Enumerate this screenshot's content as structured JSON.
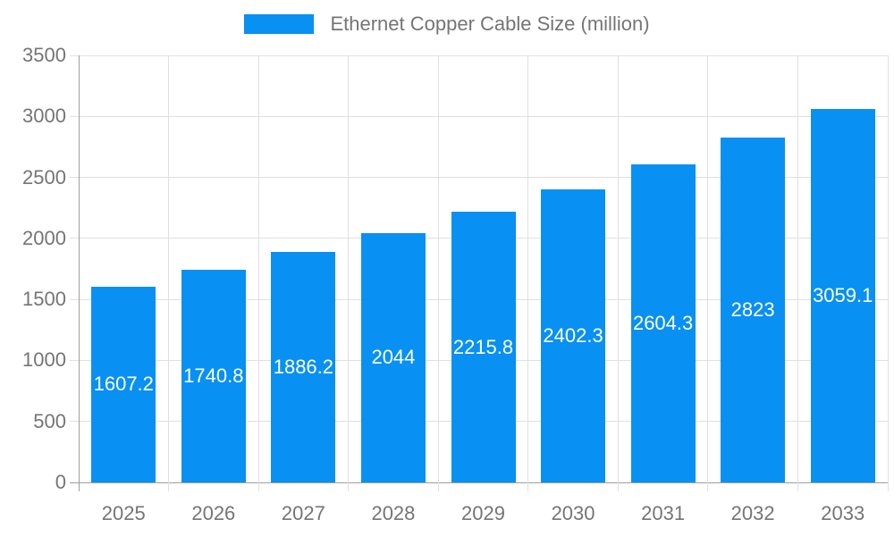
{
  "legend": {
    "label": "Ethernet Copper Cable Size (million)"
  },
  "chart_data": {
    "type": "bar",
    "title": "Ethernet Copper Cable Size (million)",
    "series_name": "Ethernet Copper Cable Size (million)",
    "categories": [
      "2025",
      "2026",
      "2027",
      "2028",
      "2029",
      "2030",
      "2031",
      "2032",
      "2033"
    ],
    "values": [
      1607.2,
      1740.8,
      1886.2,
      2044,
      2215.8,
      2402.3,
      2604.3,
      2823,
      3059.1
    ],
    "value_labels": [
      "1607.2",
      "1740.8",
      "1886.2",
      "2044",
      "2215.8",
      "2402.3",
      "2604.3",
      "2823",
      "3059.1"
    ],
    "xlabel": "",
    "ylabel": "",
    "ylim": [
      0,
      3500
    ],
    "ytick_step": 500,
    "ytick_labels": [
      "0",
      "500",
      "1000",
      "1500",
      "2000",
      "2500",
      "3000",
      "3500"
    ],
    "grid": true,
    "legend_position": "top",
    "colors": {
      "bar": "#0890f2",
      "value_label": "#ffffff",
      "axis_text": "#757575",
      "grid_line": "#e0e0e0",
      "axis_line": "#9e9e9e",
      "background": "#ffffff"
    }
  }
}
